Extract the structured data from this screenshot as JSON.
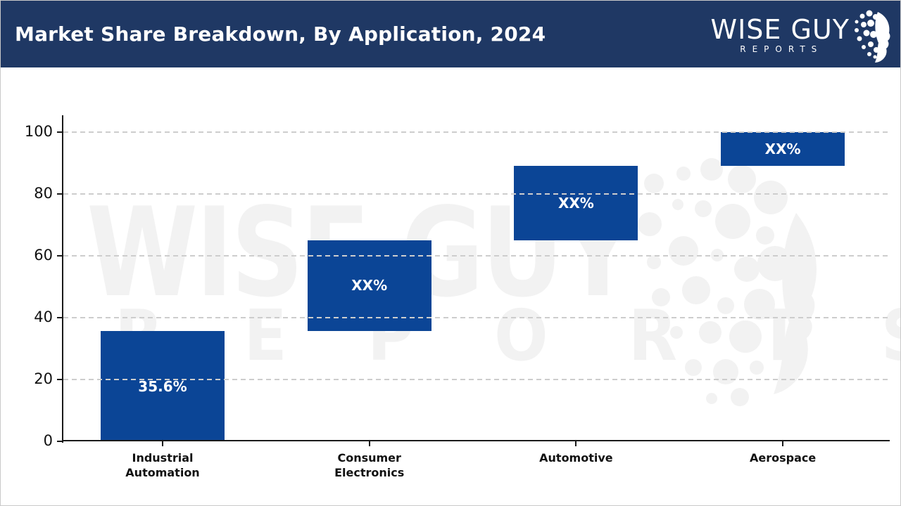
{
  "header": {
    "title": "Market Share Breakdown, By Application, 2024",
    "logo": {
      "line1": "WISE GUY",
      "line2": "REPORTS"
    }
  },
  "watermark": {
    "line1": "WISE GUY",
    "line2": "R E P O R T S"
  },
  "colors": {
    "header_bg": "#1f3864",
    "bar": "#0b4596",
    "gridline": "#cdcdcd",
    "axis": "#1a1a1a",
    "bar_label_text": "#ffffff",
    "watermark": "#f2f2f2"
  },
  "chart_data": {
    "type": "bar",
    "subtype": "waterfall (floating cumulative bars)",
    "title": "Market Share Breakdown, By Application, 2024",
    "categories": [
      "Industrial\nAutomation",
      "Consumer\nElectronics",
      "Automotive",
      "Aerospace"
    ],
    "segments": [
      {
        "start": 0,
        "end": 35.6
      },
      {
        "start": 35.6,
        "end": 65.1
      },
      {
        "start": 65.1,
        "end": 89.1
      },
      {
        "start": 89.1,
        "end": 100
      }
    ],
    "bar_labels": [
      "35.6%",
      "XX%",
      "XX%",
      "XX%"
    ],
    "yticks": [
      0,
      20,
      40,
      60,
      80,
      100
    ],
    "ylim": [
      0,
      106
    ],
    "xlabel": "",
    "ylabel": "",
    "legend": "none",
    "grid": "horizontal dashed gridlines drawn over bars"
  }
}
